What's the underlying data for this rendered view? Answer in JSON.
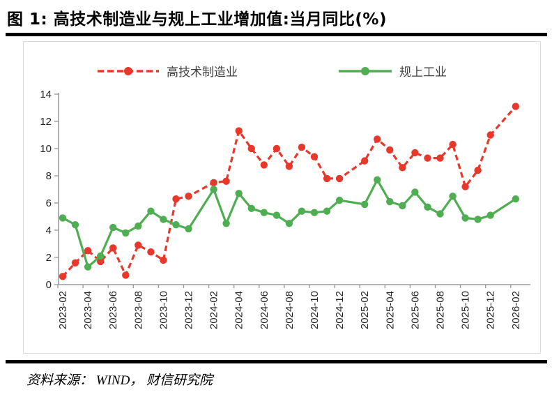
{
  "page": {
    "title": "图 1:  高技术制造业与规上工业增加值:当月同比(%)",
    "source": "资料来源： WIND， 财信研究院"
  },
  "colors": {
    "hightech_red": "#E7382B",
    "industry_green": "#4FAD52",
    "axis_gray": "#9C9C9C",
    "panel_border": "#D9D9D9",
    "text_black": "#262626"
  },
  "chart_data": {
    "type": "line",
    "title": "高技术制造业与规上工业增加值:当月同比(%)",
    "grid": false,
    "legend_position": "top",
    "ylim": [
      0,
      14
    ],
    "yticks": [
      0,
      2,
      4,
      6,
      8,
      10,
      12,
      14
    ],
    "xtick_labels": [
      "2023-02",
      "2023-04",
      "2023-06",
      "2023-08",
      "2023-10",
      "2023-12",
      "2024-02",
      "2024-04",
      "2024-06",
      "2024-08",
      "2024-10",
      "2024-12",
      "2025-02",
      "2025-04",
      "2025-06",
      "2025-08",
      "2025-10",
      "2025-12",
      "2026-02"
    ],
    "x": [
      "2023-02",
      "2023-03",
      "2023-04",
      "2023-05",
      "2023-06",
      "2023-07",
      "2023-08",
      "2023-09",
      "2023-10",
      "2023-11",
      "2023-12",
      "2024-02",
      "2024-03",
      "2024-04",
      "2024-05",
      "2024-06",
      "2024-07",
      "2024-08",
      "2024-09",
      "2024-10",
      "2024-11",
      "2024-12",
      "2025-02",
      "2025-03",
      "2025-04",
      "2025-05",
      "2025-06",
      "2025-07",
      "2025-08",
      "2025-09",
      "2025-10",
      "2025-11",
      "2025-12",
      "2026-02"
    ],
    "series": [
      {
        "name": "高技术制造业",
        "color": "#E7382B",
        "line_style": "dashed",
        "marker": "circle",
        "values": [
          0.6,
          1.6,
          2.5,
          1.7,
          2.7,
          0.7,
          2.9,
          2.4,
          1.8,
          6.3,
          6.5,
          7.5,
          7.6,
          11.3,
          10.0,
          8.8,
          10.0,
          8.7,
          10.1,
          9.4,
          7.8,
          7.8,
          9.1,
          10.7,
          9.9,
          8.6,
          9.7,
          9.3,
          9.3,
          10.3,
          7.2,
          8.4,
          11.0,
          13.1
        ]
      },
      {
        "name": "规上工业",
        "color": "#4FAD52",
        "line_style": "solid",
        "marker": "circle",
        "values": [
          4.9,
          4.4,
          1.3,
          2.1,
          4.2,
          3.8,
          4.3,
          5.4,
          4.8,
          4.4,
          4.1,
          7.0,
          4.5,
          6.7,
          5.6,
          5.3,
          5.1,
          4.5,
          5.4,
          5.3,
          5.4,
          6.2,
          5.9,
          7.7,
          6.1,
          5.8,
          6.8,
          5.7,
          5.2,
          6.5,
          4.9,
          4.8,
          5.1,
          6.3
        ]
      }
    ]
  }
}
